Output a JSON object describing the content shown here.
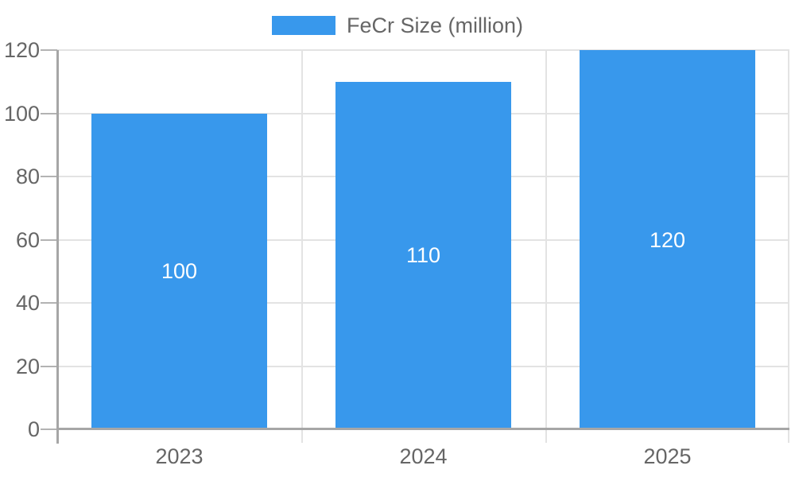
{
  "legend": {
    "label": "FeCr Size (million)"
  },
  "colors": {
    "bar": "#3898ec",
    "axis": "#a6a6a6",
    "grid": "#e3e3e3",
    "tick": "#b3b3b3",
    "text": "#666666",
    "data_label": "#ffffff"
  },
  "chart_data": {
    "type": "bar",
    "title": "",
    "categories": [
      "2023",
      "2024",
      "2025"
    ],
    "series": [
      {
        "name": "FeCr Size (million)",
        "values": [
          100,
          110,
          120
        ]
      }
    ],
    "data_labels": [
      "100",
      "110",
      "120"
    ],
    "yticks": [
      0,
      20,
      40,
      60,
      80,
      100,
      120
    ],
    "ylim": [
      0,
      120
    ],
    "xlabel": "",
    "ylabel": "",
    "grid": true,
    "legend_position": "top"
  }
}
